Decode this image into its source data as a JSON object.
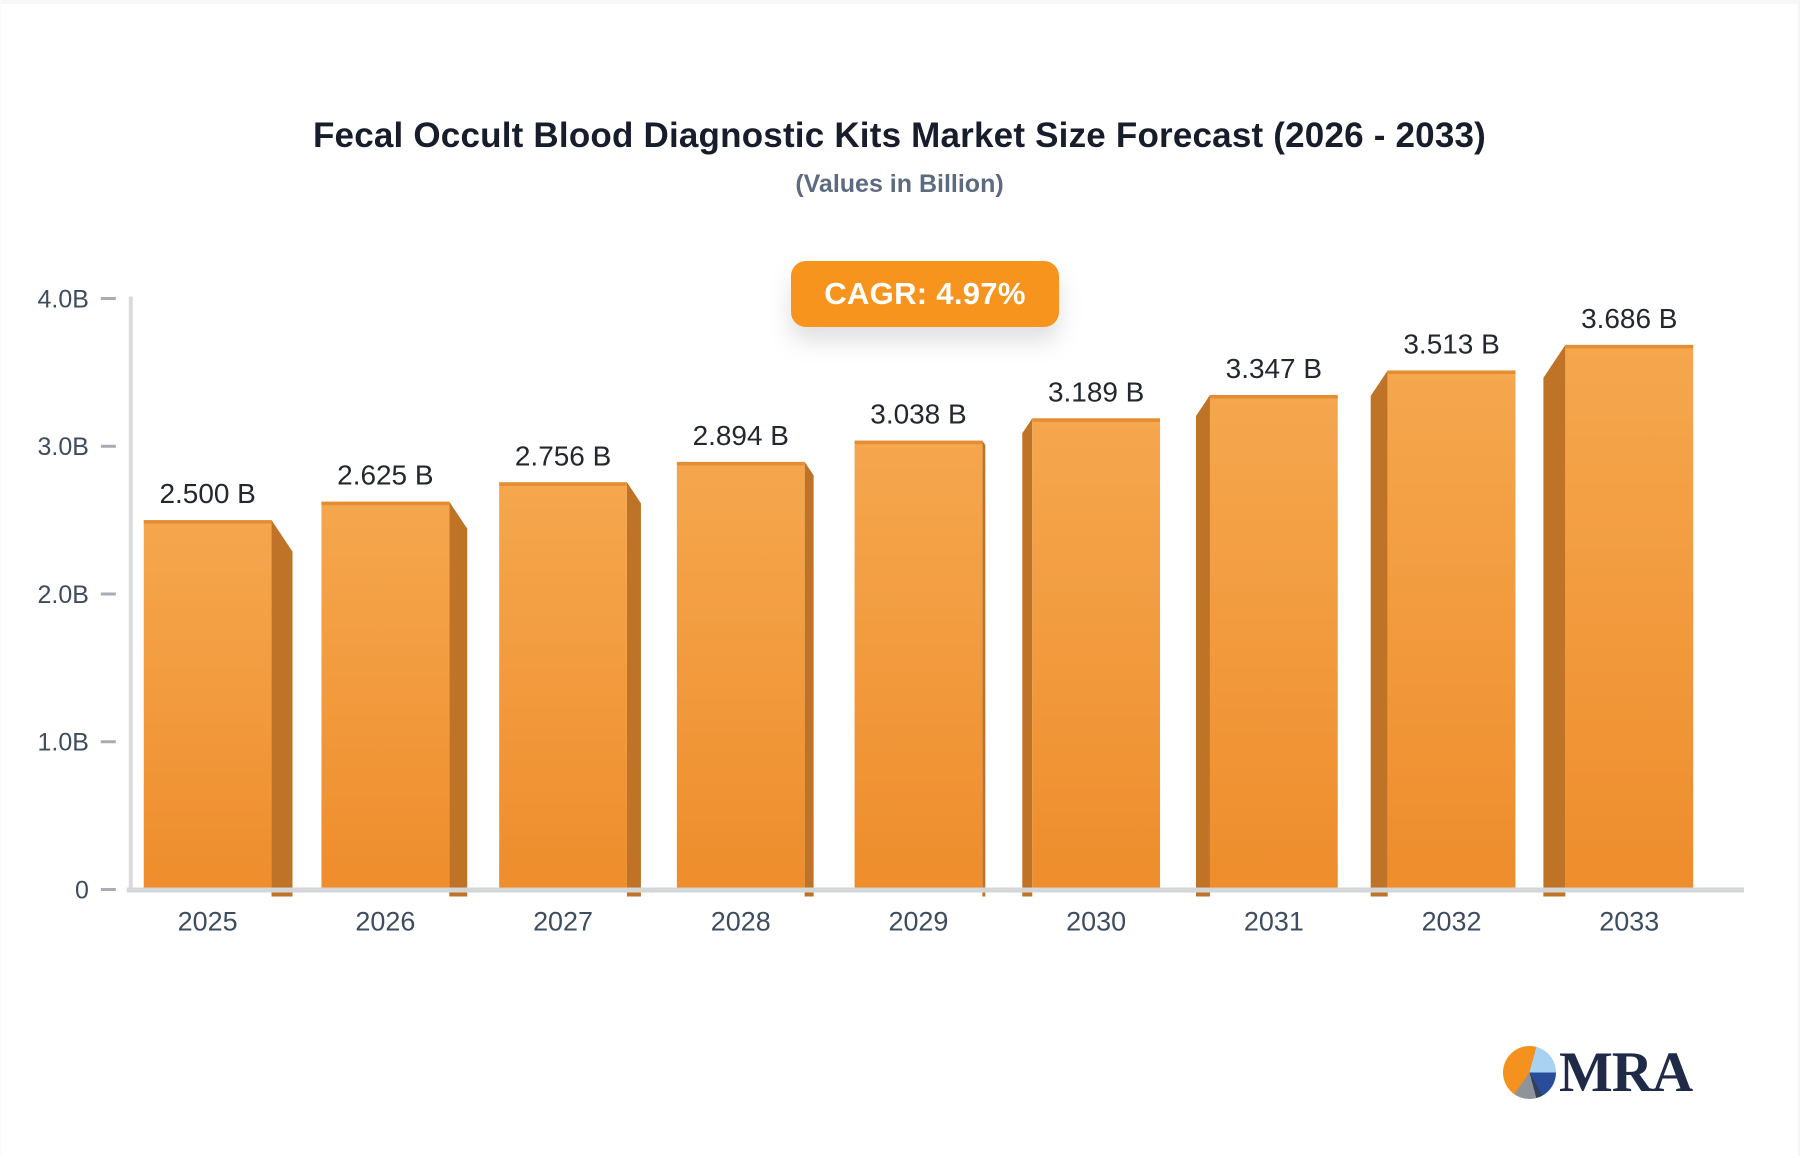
{
  "header": {
    "title": "Fecal Occult Blood Diagnostic Kits Market Size Forecast (2026 - 2033)",
    "subtitle": "(Values in Billion)",
    "cagr_label": "CAGR: 4.97%"
  },
  "chart_data": {
    "type": "bar",
    "title": "Fecal Occult Blood Diagnostic Kits Market Size Forecast (2026 - 2033)",
    "subtitle": "(Values in Billion)",
    "annotation": "CAGR: 4.97%",
    "categories": [
      "2025",
      "2026",
      "2027",
      "2028",
      "2029",
      "2030",
      "2031",
      "2032",
      "2033"
    ],
    "values": [
      2.5,
      2.625,
      2.756,
      2.894,
      3.038,
      3.189,
      3.347,
      3.513,
      3.686
    ],
    "value_labels": [
      "2.500 B",
      "2.625 B",
      "2.756 B",
      "2.894 B",
      "3.038 B",
      "3.189 B",
      "3.347 B",
      "3.513 B",
      "3.686 B"
    ],
    "xlabel": "",
    "ylabel": "",
    "ylim": [
      0,
      4
    ],
    "y_ticks": [
      {
        "value": 0,
        "label": "0"
      },
      {
        "value": 1,
        "label": "1.0B"
      },
      {
        "value": 2,
        "label": "2.0B"
      },
      {
        "value": 3,
        "label": "3.0B"
      },
      {
        "value": 4,
        "label": "4.0B"
      }
    ],
    "grid": false,
    "legend": false,
    "colors": {
      "bar_face_top": "#f5a74e",
      "bar_face_bottom": "#ee8d2c",
      "bar_top_edge": "#e0882f",
      "bar_side": "#be7327",
      "axis_line": "#d5d6d8",
      "tick_dash": "#a7adb7",
      "tick_text": "#3e4c5f",
      "value_text": "#23272f",
      "badge_bg": "#f7941e",
      "badge_text": "#ffffff"
    }
  },
  "logo": {
    "text": "MRA",
    "pie_colors": [
      "#f5911e",
      "#a9d2f2",
      "#2a4d9b",
      "#8f949b"
    ]
  }
}
